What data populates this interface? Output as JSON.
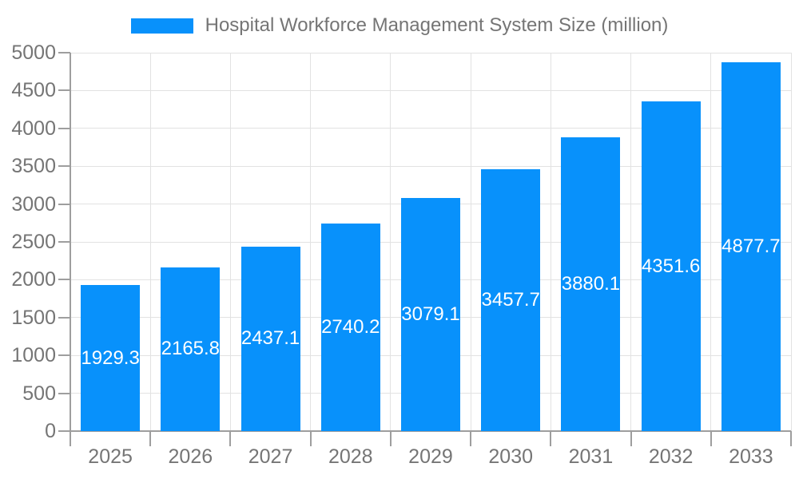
{
  "page": {
    "background_color": "#ffffff"
  },
  "legend": {
    "label": "Hospital Workforce Management System Size (million)",
    "position": "top"
  },
  "chart_data": {
    "type": "bar",
    "title": "Hospital Workforce Management System Size (million)",
    "xlabel": "",
    "ylabel": "",
    "categories": [
      "2025",
      "2026",
      "2027",
      "2028",
      "2029",
      "2030",
      "2031",
      "2032",
      "2033"
    ],
    "series": [
      {
        "name": "Hospital Workforce Management System Size (million)",
        "values": [
          1929.3,
          2165.8,
          2437.1,
          2740.2,
          3079.1,
          3457.7,
          3880.1,
          4351.6,
          4877.7
        ]
      }
    ],
    "data_labels": [
      "1929.3",
      "2165.8",
      "2437.1",
      "2740.2",
      "3079.1",
      "3457.7",
      "3880.1",
      "4351.6",
      "4877.7"
    ],
    "data_label_position": "inside-center",
    "ylim": [
      0,
      5000
    ],
    "ytick_step": 500,
    "yticks": [
      "0",
      "500",
      "1000",
      "1500",
      "2000",
      "2500",
      "3000",
      "3500",
      "4000",
      "4500",
      "5000"
    ],
    "grid": "full",
    "legend_position": "top",
    "colors": {
      "bar": "#0891FB",
      "value_label": "#ffffff",
      "axis_text": "#757575",
      "axis_line": "#9e9e9e",
      "tick_line": "#9e9e9e",
      "gridline": "#e2e2e2"
    }
  }
}
